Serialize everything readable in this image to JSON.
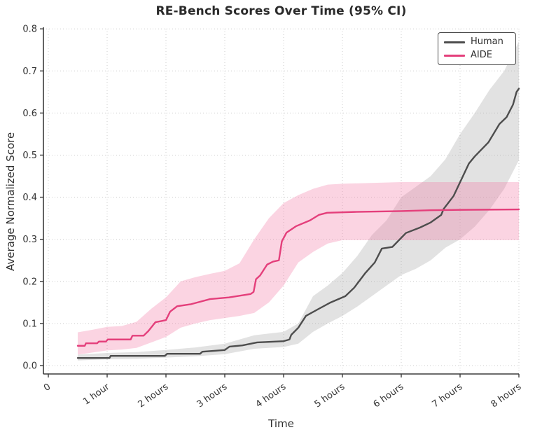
{
  "figure": {
    "title": "RE-Bench Scores Over Time (95% CI)",
    "xlabel": "Time",
    "ylabel": "Average Normalized Score"
  },
  "chart_data": {
    "type": "line",
    "title": "RE-Bench Scores Over Time (95% CI)",
    "xlabel": "Time",
    "ylabel": "Average Normalized Score",
    "ci_level": "95%",
    "grid": true,
    "legend_position": "upper right",
    "xlim": [
      -0.083,
      8.0
    ],
    "ylim": [
      -0.02,
      0.8
    ],
    "x_ticks": [
      0,
      1,
      2,
      3,
      4,
      5,
      6,
      7,
      8
    ],
    "x_tick_labels": [
      "0",
      "1 hour",
      "2 hours",
      "3 hours",
      "4 hours",
      "5 hours",
      "6 hours",
      "7 hours",
      "8 hours"
    ],
    "y_ticks": [
      0.0,
      0.1,
      0.2,
      0.3,
      0.4,
      0.5,
      0.6,
      0.7,
      0.8
    ],
    "y_tick_labels": [
      "0.0",
      "0.1",
      "0.2",
      "0.3",
      "0.4",
      "0.5",
      "0.6",
      "0.7",
      "0.8"
    ],
    "colors": {
      "human_line": "#4d4d4d",
      "human_band": "#a8a8a8",
      "aide_line": "#e43f7b",
      "aide_band": "#f27ba6",
      "grid": "#cccccc",
      "spine": "#3c3c3c",
      "tick_text": "#333333"
    },
    "series": [
      {
        "name": "Human",
        "color": "#4d4d4d",
        "band_color": "#a8a8a8",
        "x": [
          0.5,
          1.04,
          1.06,
          1.98,
          2.02,
          2.58,
          2.62,
          3.0,
          3.08,
          3.3,
          3.55,
          3.72,
          4.0,
          4.1,
          4.13,
          4.25,
          4.38,
          4.6,
          4.8,
          5.05,
          5.2,
          5.39,
          5.55,
          5.67,
          5.85,
          6.08,
          6.32,
          6.5,
          6.68,
          6.72,
          6.89,
          7.15,
          7.25,
          7.48,
          7.67,
          7.79,
          7.9,
          7.96,
          8.0
        ],
        "y": [
          0.018,
          0.018,
          0.023,
          0.023,
          0.028,
          0.028,
          0.033,
          0.037,
          0.045,
          0.048,
          0.055,
          0.056,
          0.058,
          0.062,
          0.073,
          0.09,
          0.118,
          0.135,
          0.15,
          0.165,
          0.185,
          0.22,
          0.245,
          0.278,
          0.282,
          0.315,
          0.328,
          0.34,
          0.358,
          0.372,
          0.403,
          0.48,
          0.497,
          0.53,
          0.574,
          0.59,
          0.62,
          0.65,
          0.658
        ],
        "band_x": [
          0.5,
          1.0,
          1.5,
          2.0,
          2.5,
          3.0,
          3.5,
          4.0,
          4.25,
          4.5,
          4.75,
          5.0,
          5.25,
          5.5,
          5.75,
          6.0,
          6.25,
          6.5,
          6.75,
          7.0,
          7.25,
          7.5,
          7.75,
          8.0
        ],
        "band_lower": [
          0.012,
          0.015,
          0.016,
          0.019,
          0.022,
          0.027,
          0.04,
          0.044,
          0.052,
          0.08,
          0.1,
          0.118,
          0.14,
          0.165,
          0.19,
          0.215,
          0.23,
          0.25,
          0.28,
          0.3,
          0.33,
          0.37,
          0.42,
          0.488
        ],
        "band_upper": [
          0.026,
          0.03,
          0.032,
          0.037,
          0.043,
          0.052,
          0.072,
          0.08,
          0.1,
          0.165,
          0.19,
          0.22,
          0.26,
          0.31,
          0.345,
          0.4,
          0.425,
          0.45,
          0.49,
          0.55,
          0.6,
          0.655,
          0.7,
          0.77
        ]
      },
      {
        "name": "AIDE",
        "color": "#e43f7b",
        "band_color": "#f27ba6",
        "x": [
          0.5,
          0.62,
          0.64,
          0.83,
          0.86,
          0.98,
          1.01,
          1.4,
          1.43,
          1.62,
          1.7,
          1.82,
          1.93,
          2.0,
          2.07,
          2.19,
          2.43,
          2.75,
          3.07,
          3.44,
          3.49,
          3.53,
          3.6,
          3.72,
          3.82,
          3.92,
          3.97,
          4.05,
          4.21,
          4.45,
          4.6,
          4.74,
          5.2,
          6.0,
          6.5,
          7.0,
          8.0
        ],
        "y": [
          0.047,
          0.047,
          0.053,
          0.053,
          0.057,
          0.057,
          0.062,
          0.062,
          0.071,
          0.071,
          0.082,
          0.103,
          0.106,
          0.108,
          0.128,
          0.141,
          0.146,
          0.158,
          0.162,
          0.17,
          0.175,
          0.205,
          0.214,
          0.24,
          0.247,
          0.25,
          0.295,
          0.316,
          0.331,
          0.345,
          0.358,
          0.363,
          0.365,
          0.367,
          0.369,
          0.37,
          0.371
        ],
        "band_x": [
          0.5,
          0.75,
          1.0,
          1.25,
          1.5,
          1.75,
          2.0,
          2.25,
          2.5,
          2.75,
          3.0,
          3.25,
          3.5,
          3.75,
          4.0,
          4.25,
          4.5,
          4.75,
          5.0,
          6.0,
          7.0,
          8.0
        ],
        "band_lower": [
          0.026,
          0.031,
          0.036,
          0.038,
          0.042,
          0.055,
          0.068,
          0.09,
          0.1,
          0.108,
          0.113,
          0.118,
          0.125,
          0.15,
          0.19,
          0.245,
          0.27,
          0.29,
          0.298,
          0.298,
          0.298,
          0.298
        ],
        "band_upper": [
          0.079,
          0.085,
          0.092,
          0.094,
          0.104,
          0.135,
          0.162,
          0.2,
          0.21,
          0.218,
          0.225,
          0.243,
          0.3,
          0.35,
          0.386,
          0.405,
          0.42,
          0.43,
          0.432,
          0.436,
          0.436,
          0.436
        ]
      }
    ]
  }
}
